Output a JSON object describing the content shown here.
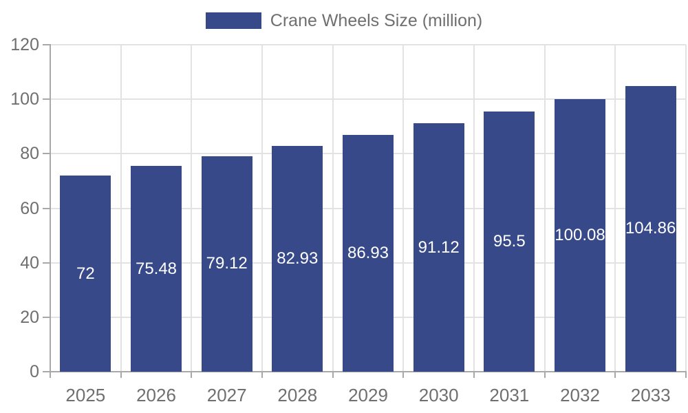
{
  "chart_data": {
    "type": "bar",
    "title": "",
    "categories": [
      "2025",
      "2026",
      "2027",
      "2028",
      "2029",
      "2030",
      "2031",
      "2032",
      "2033"
    ],
    "series": [
      {
        "name": "Crane Wheels Size (million)",
        "values": [
          72,
          75.48,
          79.12,
          82.93,
          86.93,
          91.12,
          95.5,
          100.08,
          104.86
        ]
      }
    ],
    "value_labels": [
      "72",
      "75.48",
      "79.12",
      "82.93",
      "86.93",
      "91.12",
      "95.5",
      "100.08",
      "104.86"
    ],
    "value_label_position": "inside-center",
    "xlabel": "",
    "ylabel": "",
    "ylim": [
      0,
      120
    ],
    "yticks": [
      0,
      20,
      40,
      60,
      80,
      100,
      120
    ],
    "grid": true,
    "legend_position": "top-center"
  },
  "colors": {
    "bar": "#38498a",
    "grid": "#e2e2e2",
    "axis": "#a8a8a8",
    "tick_label": "#6f6f6f",
    "legend_text": "#6f6f6f",
    "value_label": "#ffffff",
    "background": "#ffffff"
  }
}
